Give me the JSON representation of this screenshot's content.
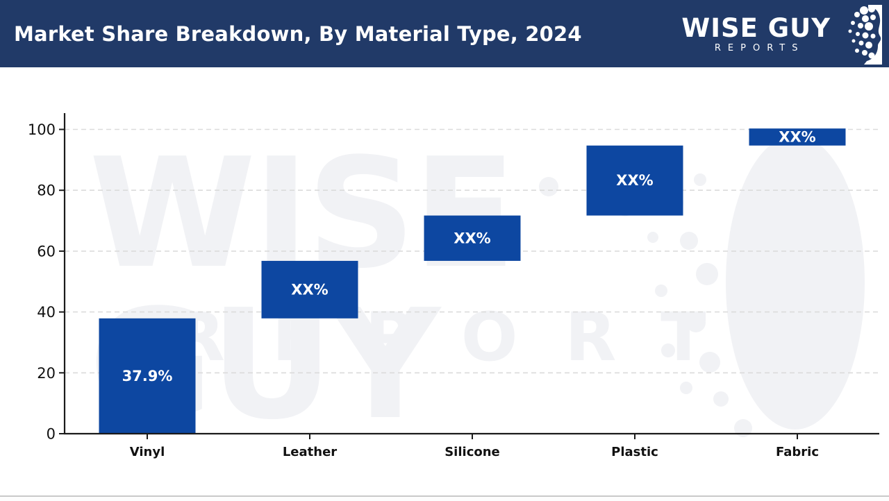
{
  "header": {
    "title": "Market Share Breakdown, By Material Type, 2024",
    "logo": {
      "line1": "WISE GUY",
      "line2": "REPORTS"
    }
  },
  "watermark": {
    "line1": "WISE GUY",
    "line2": "REPORTS"
  },
  "colors": {
    "header_bg": "#213A68",
    "bar": "#0D47A1",
    "bar_label": "#FFFFFF",
    "axis": "#1A1A1A",
    "tick_text": "#111111",
    "gridline": "#DBDBDB",
    "watermark": "#F1F2F5",
    "footer_line": "#C9C9C9"
  },
  "chart_data": {
    "type": "bar",
    "subtype": "waterfall",
    "title": "Market Share Breakdown, By Material Type, 2024",
    "categories": [
      "Vinyl",
      "Leather",
      "Silicone",
      "Plastic",
      "Fabric"
    ],
    "segments": [
      {
        "category": "Vinyl",
        "start": 0,
        "end": 37.9,
        "label": "37.9%"
      },
      {
        "category": "Leather",
        "start": 37.9,
        "end": 56.8,
        "label": "XX%"
      },
      {
        "category": "Silicone",
        "start": 56.8,
        "end": 71.7,
        "label": "XX%"
      },
      {
        "category": "Plastic",
        "start": 71.7,
        "end": 94.7,
        "label": "XX%"
      },
      {
        "category": "Fabric",
        "start": 94.7,
        "end": 100.3,
        "label": "XX%"
      }
    ],
    "yticks": [
      0,
      20,
      40,
      60,
      80,
      100
    ],
    "ylim": [
      0,
      105
    ],
    "xlabel": "",
    "ylabel": "",
    "grid": "dashed-horizontal",
    "legend": "none"
  }
}
